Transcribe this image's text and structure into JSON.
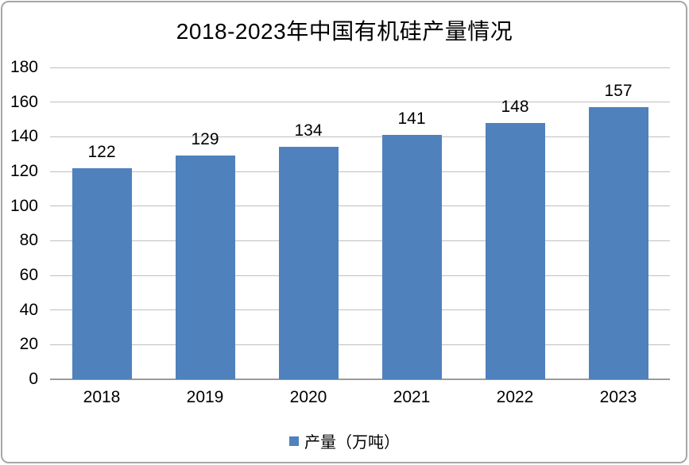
{
  "chart_data": {
    "type": "bar",
    "title": "2018-2023年中国有机硅产量情况",
    "categories": [
      "2018",
      "2019",
      "2020",
      "2021",
      "2022",
      "2023"
    ],
    "series": [
      {
        "name": "产量（万吨）",
        "values": [
          122,
          129,
          134,
          141,
          148,
          157
        ]
      }
    ],
    "data_labels_shown": true,
    "xlabel": "",
    "ylabel": "",
    "ylim": [
      0,
      180
    ],
    "yticks": [
      0,
      20,
      40,
      60,
      80,
      100,
      120,
      140,
      160,
      180
    ],
    "grid": true,
    "legend_position": "bottom",
    "colors": {
      "bar": "#4F81BD",
      "gridline": "#BFBFBF",
      "axis_line": "#9B9B9B",
      "frame_border": "#A6A6A6",
      "text": "#000000",
      "background": "#FFFFFF"
    }
  }
}
